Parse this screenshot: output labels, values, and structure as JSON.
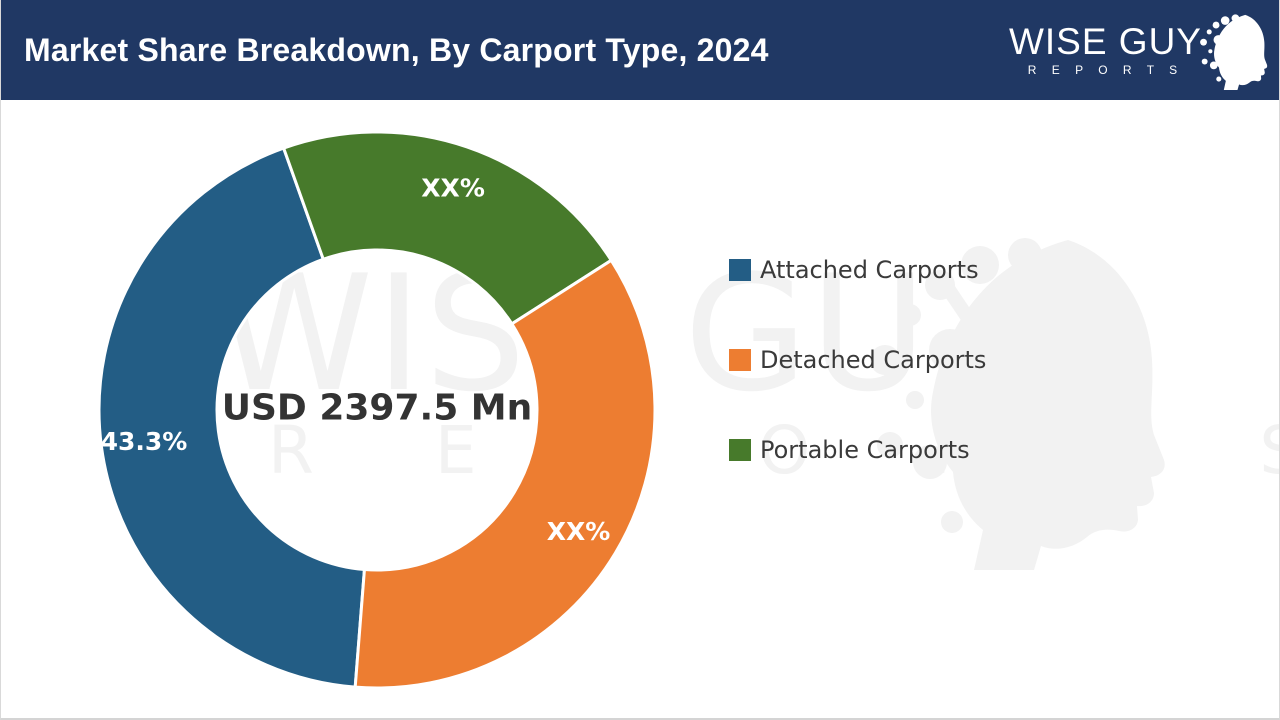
{
  "header": {
    "title": "Market Share Breakdown, By Carport Type, 2024",
    "background_color": "#203864",
    "logo_line1": "WISE GUY",
    "logo_line2": "R E P O R T S"
  },
  "watermark": {
    "line1": "WISE GUY",
    "line2": "R E P O R T S"
  },
  "chart_data": {
    "type": "donut",
    "title": "Market Share Breakdown, By Carport Type, 2024",
    "center_label": "USD 2397.5 Mn",
    "start_angle_deg_clockwise_from_top": 184.5,
    "segments": [
      {
        "name": "Attached Carports",
        "value_pct": 43.3,
        "display_label": "43.3%",
        "color": "#235d85"
      },
      {
        "name": "Portable Carports",
        "value_pct": 21.4,
        "display_label": "XX%",
        "color": "#477a2b"
      },
      {
        "name": "Detached Carports",
        "value_pct": 35.3,
        "display_label": "XX%",
        "color": "#ed7d31"
      }
    ],
    "legend": [
      {
        "label": "Attached Carports",
        "color": "#235d85"
      },
      {
        "label": "Detached Carports",
        "color": "#ed7d31"
      },
      {
        "label": "Portable Carports",
        "color": "#477a2b"
      }
    ],
    "legend_position": "right",
    "colors": {
      "center_text": "#333333",
      "legend_text": "#3a3a3a",
      "watermark": "#f2f2f2",
      "slice_label_text": "#ffffff"
    }
  }
}
